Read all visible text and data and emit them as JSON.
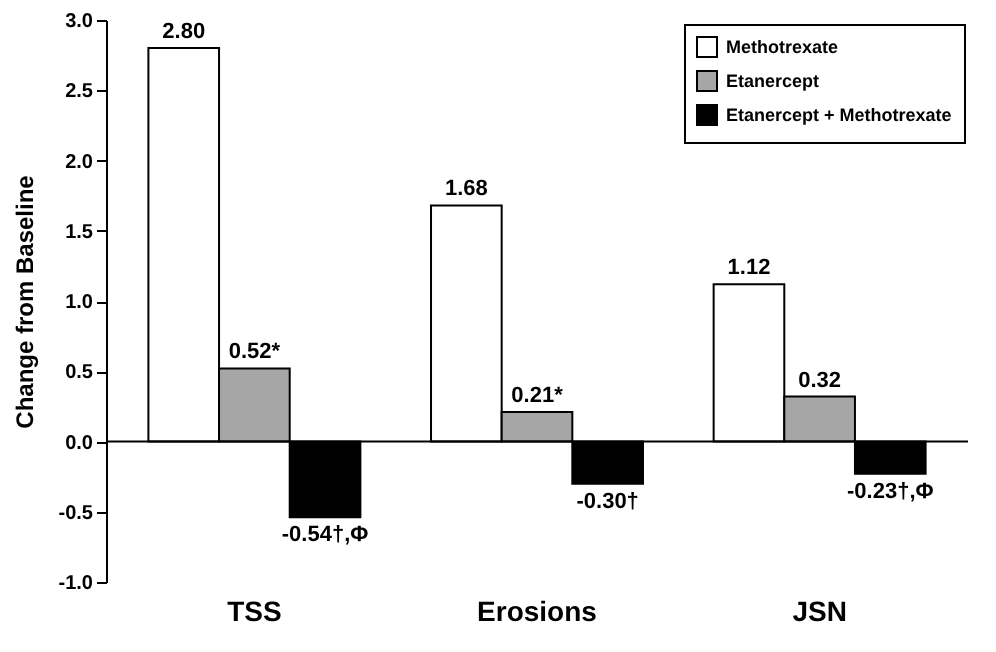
{
  "chart_data": {
    "type": "bar",
    "ylabel": "Change from Baseline",
    "categories": [
      "TSS",
      "Erosions",
      "JSN"
    ],
    "series": [
      {
        "name": "Methotrexate",
        "color": "#ffffff",
        "values": [
          2.8,
          1.68,
          1.12
        ],
        "value_labels": [
          "2.80",
          "1.68",
          "1.12"
        ]
      },
      {
        "name": "Etanercept",
        "color": "#a6a6a6",
        "values": [
          0.52,
          0.21,
          0.32
        ],
        "value_labels": [
          "0.52*",
          "0.21*",
          "0.32"
        ]
      },
      {
        "name": "Etanercept + Methotrexate",
        "color": "#000000",
        "values": [
          -0.54,
          -0.3,
          -0.23
        ],
        "value_labels": [
          "-0.54†,Φ",
          "-0.30†",
          "-0.23†,Φ"
        ]
      }
    ],
    "ylim": [
      -1.0,
      3.0
    ],
    "yticks": [
      {
        "value": -1.0,
        "label": "-1.0"
      },
      {
        "value": -0.5,
        "label": "-0.5"
      },
      {
        "value": 0,
        "label": "0.0"
      },
      {
        "value": 0.5,
        "label": "0.5"
      },
      {
        "value": 1.0,
        "label": "1.0"
      },
      {
        "value": 1.5,
        "label": "1.5"
      },
      {
        "value": 2.0,
        "label": "2.0"
      },
      {
        "value": 2.5,
        "label": "2.5"
      },
      {
        "value": 3.0,
        "label": "3.0"
      }
    ],
    "ref_lines": [
      {
        "axis": "y",
        "value": 0
      }
    ],
    "grid": false,
    "legend": "top right"
  }
}
